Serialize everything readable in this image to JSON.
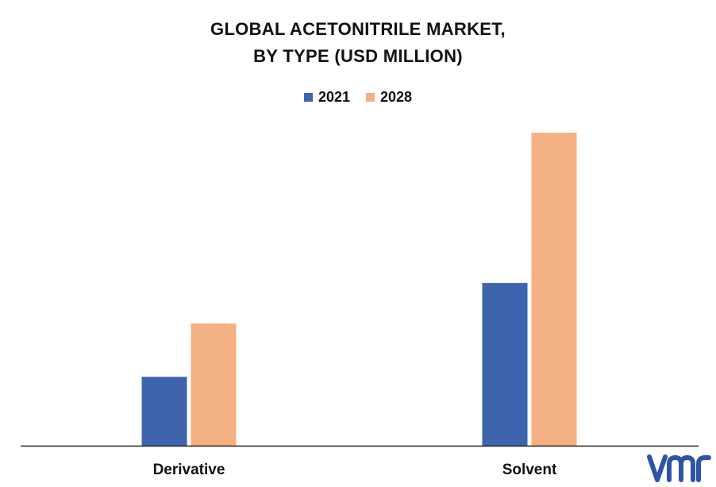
{
  "chart_data": {
    "type": "bar",
    "title_lines": [
      "GLOBAL ACETONITRILE MARKET,",
      "BY TYPE (USD MILLION)"
    ],
    "categories": [
      "Derivative",
      "Solvent"
    ],
    "series": [
      {
        "name": "2021",
        "values": [
          22,
          52
        ],
        "color": "#3d64ad"
      },
      {
        "name": "2028",
        "values": [
          39,
          100
        ],
        "color": "#f4b183"
      }
    ],
    "ylim": [
      0,
      100
    ],
    "grid": false,
    "legend_position": "top-center",
    "xlabel": "",
    "ylabel": ""
  },
  "logo": {
    "text": "vmr",
    "color": "#2e54a6"
  }
}
